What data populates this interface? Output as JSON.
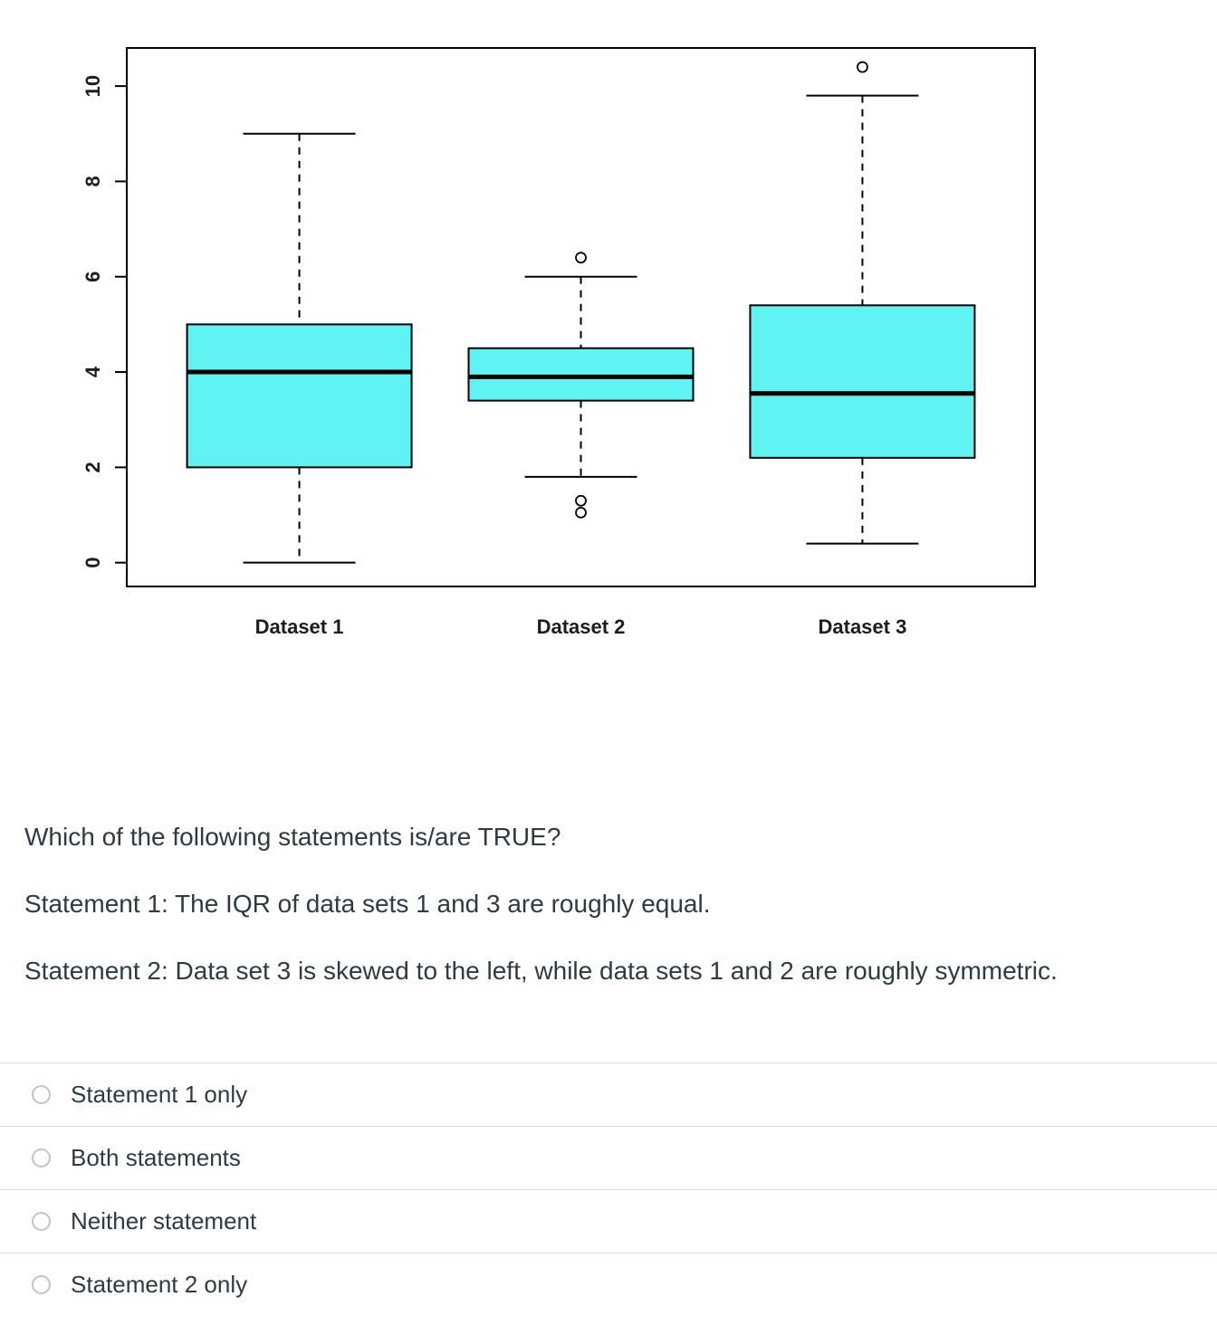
{
  "chart_data": {
    "type": "boxplot",
    "title": "",
    "xlabel": "",
    "ylabel": "",
    "ylim": [
      -0.5,
      10.8
    ],
    "yticks": [
      0,
      2,
      4,
      6,
      8,
      10
    ],
    "grid": false,
    "box_color": "#5FF3F3",
    "series": [
      {
        "name": "Dataset 1",
        "low": 0,
        "q1": 2,
        "median": 4,
        "q3": 5,
        "high": 9,
        "outliers": []
      },
      {
        "name": "Dataset 2",
        "low": 1.8,
        "q1": 3.4,
        "median": 3.9,
        "q3": 4.5,
        "high": 6,
        "outliers": [
          6.4,
          1.3,
          1.05
        ]
      },
      {
        "name": "Dataset 3",
        "low": 0.4,
        "q1": 2.2,
        "median": 3.55,
        "q3": 5.4,
        "high": 9.8,
        "outliers": [
          10.4
        ]
      }
    ]
  },
  "question": {
    "prompt": "Which of the following statements is/are TRUE?",
    "statement1": "Statement 1: The IQR of data sets 1 and 3 are roughly equal.",
    "statement2": "Statement 2: Data set 3 is skewed to the left, while data sets 1 and 2 are roughly symmetric."
  },
  "answers": {
    "options": [
      {
        "label": "Statement 1 only"
      },
      {
        "label": "Both statements"
      },
      {
        "label": "Neither statement"
      },
      {
        "label": "Statement 2 only"
      }
    ]
  }
}
